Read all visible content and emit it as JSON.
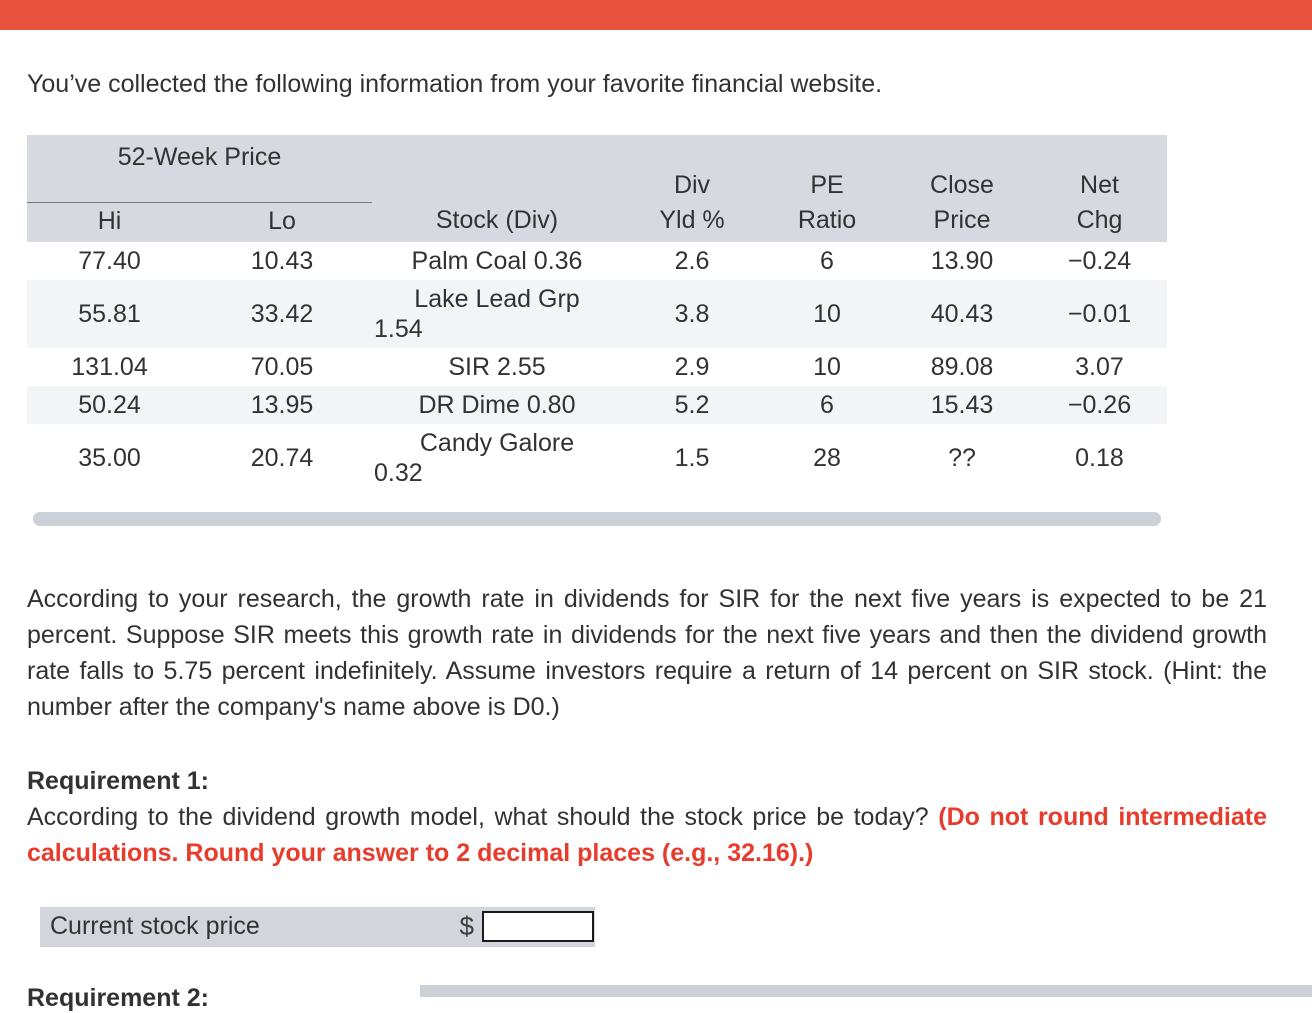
{
  "colors": {
    "top_bar": "#e8513d",
    "accent_red": "#e73b2c",
    "table_header_bg": "#d6d9e0",
    "row_alt_bg": "#f3f4f6",
    "scrollbar": "#ccd0d7",
    "answer_row_bg": "#d2d5db"
  },
  "intro": "You’ve collected the following information from your favorite financial website.",
  "table": {
    "group_header": "52-Week Price",
    "columns": [
      {
        "top": "",
        "bottom": "Hi"
      },
      {
        "top": "",
        "bottom": "Lo"
      },
      {
        "top": "",
        "bottom": "Stock (Div)"
      },
      {
        "top": "Div",
        "bottom": "Yld %"
      },
      {
        "top": "PE",
        "bottom": "Ratio"
      },
      {
        "top": "Close",
        "bottom": "Price"
      },
      {
        "top": "Net",
        "bottom": "Chg"
      }
    ],
    "rows": [
      {
        "hi": "77.40",
        "lo": "10.43",
        "stock": "Palm Coal 0.36",
        "stock2": "",
        "yld": "2.6",
        "pe": "6",
        "close": "13.90",
        "net": "−0.24"
      },
      {
        "hi": "55.81",
        "lo": "33.42",
        "stock": "Lake Lead Grp",
        "stock2": "1.54",
        "yld": "3.8",
        "pe": "10",
        "close": "40.43",
        "net": "−0.01"
      },
      {
        "hi": "131.04",
        "lo": "70.05",
        "stock": "SIR 2.55",
        "stock2": "",
        "yld": "2.9",
        "pe": "10",
        "close": "89.08",
        "net": "3.07"
      },
      {
        "hi": "50.24",
        "lo": "13.95",
        "stock": "DR Dime 0.80",
        "stock2": "",
        "yld": "5.2",
        "pe": "6",
        "close": "15.43",
        "net": "−0.26"
      },
      {
        "hi": "35.00",
        "lo": "20.74",
        "stock": "Candy Galore",
        "stock2": "0.32",
        "yld": "1.5",
        "pe": "28",
        "close": "??",
        "net": "0.18"
      }
    ]
  },
  "paragraph": "According to your research, the growth rate in dividends for SIR for the next five years is expected to be 21 percent. Suppose SIR meets this growth rate in dividends for the next five years and then the dividend growth rate falls to 5.75 percent indefinitely. Assume investors require a return of 14 percent on SIR stock.  (Hint: the number after the company's name above is D0.)",
  "requirement1": {
    "heading": "Requirement 1:",
    "question": "According to the dividend growth model, what should the stock price be today? ",
    "instruction_red": "(Do not round intermediate calculations. Round your answer to 2 decimal places (e.g., 32.16).)",
    "answer_label": "Current stock price",
    "currency_symbol": "$",
    "answer_value": ""
  },
  "requirement2_partial": "Requirement 2:"
}
